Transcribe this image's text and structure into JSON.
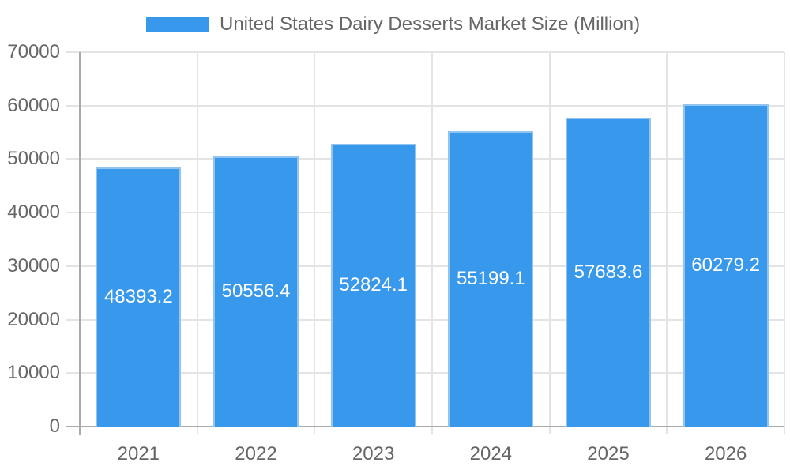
{
  "chart_data": {
    "type": "bar",
    "title": "United States Dairy Desserts Market Size (Million)",
    "categories": [
      "2021",
      "2022",
      "2023",
      "2024",
      "2025",
      "2026"
    ],
    "series": [
      {
        "name": "United States Dairy Desserts Market Size (Million)",
        "values": [
          48393.2,
          50556.4,
          52824.1,
          55199.1,
          57683.6,
          60279.2
        ]
      }
    ],
    "value_labels": [
      "48393.2",
      "50556.4",
      "52824.1",
      "55199.1",
      "57683.6",
      "60279.2"
    ],
    "xlabel": "",
    "ylabel": "",
    "ylim": [
      0,
      70000
    ],
    "ytick_step": 10000,
    "yticks": [
      0,
      10000,
      20000,
      30000,
      40000,
      50000,
      60000,
      70000
    ],
    "grid": true,
    "legend_position": "top",
    "colors": {
      "bar_fill": "#3898EC",
      "bar_border": "#92C4F0",
      "gridline": "#E4E4E4",
      "axis_line": "#AAAAAA",
      "tick_text": "#666666",
      "legend_text": "#666666",
      "value_label_text": "#FFFFFF",
      "background": "#FFFFFF"
    }
  }
}
